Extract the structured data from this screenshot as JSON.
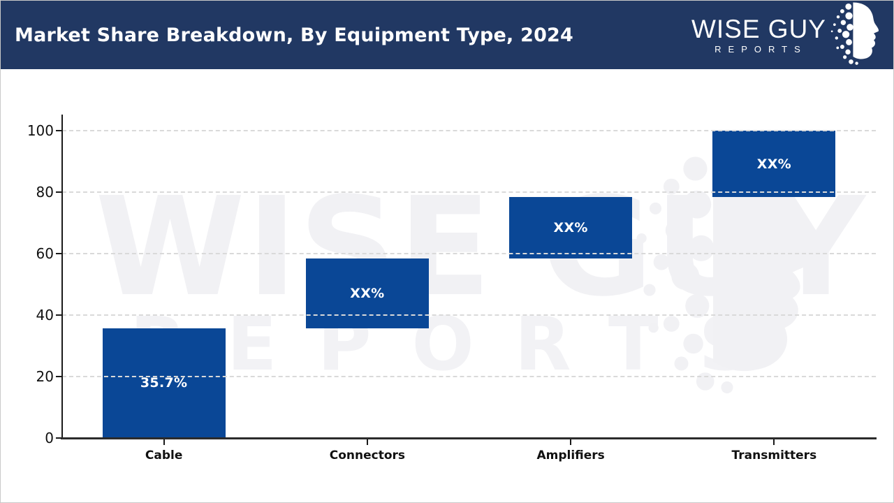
{
  "header": {
    "title": "Market Share Breakdown, By Equipment Type, 2024",
    "brand": {
      "name": "WISE GUY",
      "subtitle": "REPORTS"
    },
    "background_color": "#213863"
  },
  "watermark": {
    "line1": "WISE GUY",
    "line2": "REPORTS"
  },
  "chart_data": {
    "type": "bar",
    "subtype": "waterfall",
    "title": "Market Share Breakdown, By Equipment Type, 2024",
    "xlabel": "",
    "ylabel": "",
    "ylim": [
      0,
      100
    ],
    "y_ticks": [
      0,
      20,
      40,
      60,
      80,
      100
    ],
    "grid": "horizontal-dashed",
    "gridline_color": "#d9d9d9",
    "grid_above_bars": true,
    "legend": "none",
    "bar_color": "#0a4796",
    "bar_label_color": "#ffffff",
    "categories": [
      "Cable",
      "Connectors",
      "Amplifiers",
      "Transmitters"
    ],
    "segments": [
      {
        "category": "Cable",
        "start": 0,
        "end": 35.7,
        "value": 35.7,
        "label": "35.7%"
      },
      {
        "category": "Connectors",
        "start": 35.7,
        "end": 58.4,
        "value": 22.7,
        "label": "XX%"
      },
      {
        "category": "Amplifiers",
        "start": 58.4,
        "end": 78.4,
        "value": 20.0,
        "label": "XX%"
      },
      {
        "category": "Transmitters",
        "start": 78.4,
        "end": 100,
        "value": 21.6,
        "label": "XX%"
      }
    ]
  }
}
